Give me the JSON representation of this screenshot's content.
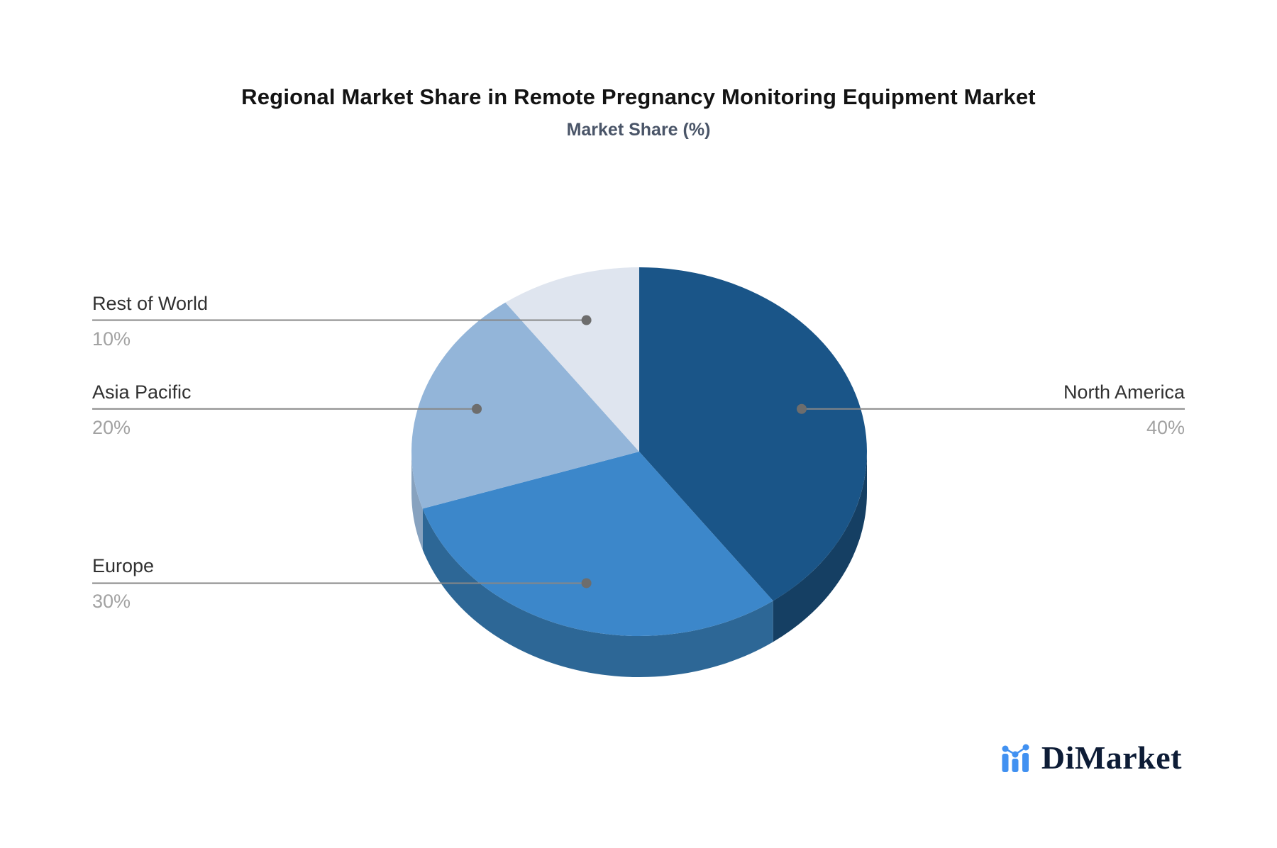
{
  "title": "Regional Market Share in Remote Pregnancy Monitoring Equipment Market",
  "subtitle": "Market Share (%)",
  "chart_data": {
    "type": "pie",
    "style": "3d",
    "title": "Regional Market Share in Remote Pregnancy Monitoring Equipment Market",
    "subtitle": "Market Share (%)",
    "unit": "%",
    "start_angle_deg": 0,
    "direction": "clockwise",
    "legend_position": "connector-labels",
    "connector_color": "#878787",
    "connector_dot_color": "#6d6d6d",
    "label_color": "#313131",
    "value_color": "#a2a2a2",
    "slices": [
      {
        "label": "North America",
        "value": 40,
        "display": "40%",
        "color": "#1a5588",
        "side_color": "#153f63",
        "label_side": "right"
      },
      {
        "label": "Europe",
        "value": 30,
        "display": "30%",
        "color": "#3c87ca",
        "side_color": "#2d6796",
        "label_side": "left"
      },
      {
        "label": "Asia Pacific",
        "value": 20,
        "display": "20%",
        "color": "#93b5d9",
        "side_color": "#87a2bf",
        "label_side": "left"
      },
      {
        "label": "Rest of World",
        "value": 10,
        "display": "10%",
        "color": "#dfe5ef",
        "side_color": "#c9d2e0",
        "label_side": "left"
      }
    ]
  },
  "logo": {
    "text": "DiMarket",
    "icon": "bar-line-chart-icon",
    "icon_color": "#4191f1",
    "text_color": "#0d1c36"
  }
}
